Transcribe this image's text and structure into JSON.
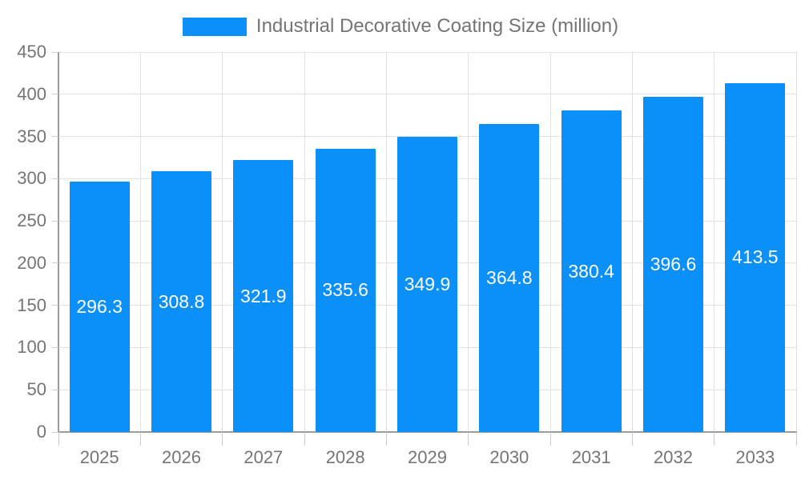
{
  "chart_data": {
    "type": "bar",
    "title": "Industrial Decorative Coating Size (million)",
    "categories": [
      "2025",
      "2026",
      "2027",
      "2028",
      "2029",
      "2030",
      "2031",
      "2032",
      "2033"
    ],
    "series": [
      {
        "name": "Industrial Decorative Coating Size (million)",
        "values": [
          296.3,
          308.8,
          321.9,
          335.6,
          349.9,
          364.8,
          380.4,
          396.6,
          413.5
        ]
      }
    ],
    "xlabel": "",
    "ylabel": "",
    "ylim": [
      0,
      450
    ],
    "ytick_step": 50,
    "grid": true,
    "legend_position": "top-center",
    "value_labels": "inside-center",
    "value_label_decimals": 1,
    "colors": {
      "bar": "#0a90f8",
      "bar_label_text": "#ffffff",
      "axis_text": "#757575",
      "legend_text": "#757575",
      "axis_line": "#9c9c9c",
      "grid_line": "#e2e2e2",
      "tick_line": "#cccccc",
      "background": "#ffffff"
    }
  },
  "legend": {
    "label": "Industrial Decorative Coating Size (million)"
  }
}
